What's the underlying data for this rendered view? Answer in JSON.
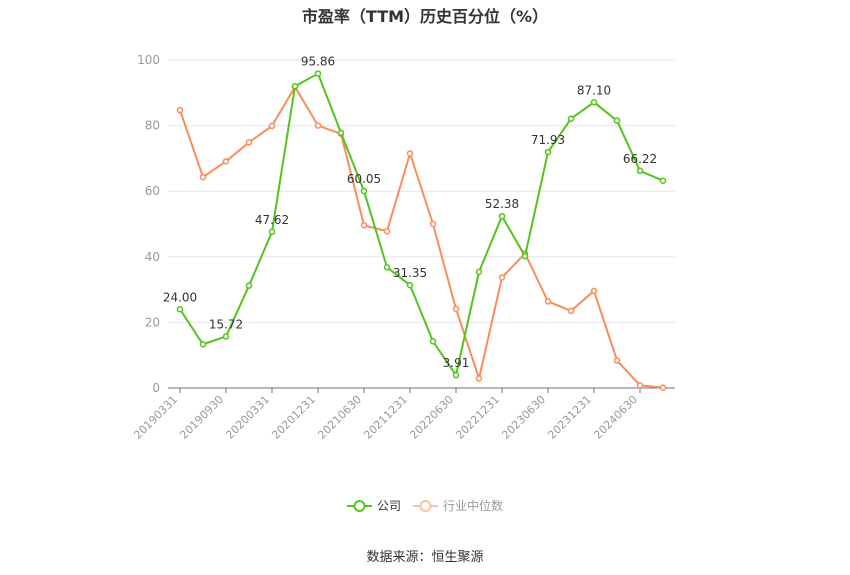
{
  "title": "市盈率（TTM）历史百分位（%）",
  "source": "数据来源：恒生聚源",
  "legend": [
    {
      "name": "公司",
      "color": "#52c41a"
    },
    {
      "name": "行业中位数",
      "color": "#fa8c5a"
    }
  ],
  "chart_data": {
    "type": "line",
    "title": "市盈率（TTM）历史百分位（%）",
    "xlabel": "",
    "ylabel": "",
    "ylim": [
      0,
      100
    ],
    "yticks": [
      0,
      20,
      40,
      60,
      80,
      100
    ],
    "grid": true,
    "legend_position": "bottom",
    "x_tick_labels": [
      "20190331",
      "20190930",
      "20200331",
      "20201231",
      "20210630",
      "20211231",
      "20220630",
      "20221231",
      "20230630",
      "20231231",
      "20240630"
    ],
    "x": [
      "20190331",
      "20190630",
      "20190930",
      "20191231",
      "20200331",
      "20200630",
      "20201231",
      "20210331",
      "20210630",
      "20210930",
      "20211231",
      "20220331",
      "20220630",
      "20220930",
      "20221231",
      "20230331",
      "20230630",
      "20230930",
      "20231231",
      "20240331",
      "20240630",
      "20240930"
    ],
    "series": [
      {
        "name": "公司",
        "color": "#52c41a",
        "values": [
          24.0,
          13.3,
          15.72,
          31.2,
          47.62,
          92.0,
          95.86,
          77.8,
          60.05,
          36.8,
          31.35,
          14.2,
          3.91,
          35.4,
          52.38,
          40.2,
          71.93,
          82.1,
          87.1,
          81.5,
          66.22,
          63.2
        ],
        "labeled_points": {
          "0": "24.00",
          "2": "15.72",
          "4": "47.62",
          "6": "95.86",
          "8": "60.05",
          "10": "31.35",
          "12": "3.91",
          "14": "52.38",
          "16": "71.93",
          "18": "87.10",
          "20": "66.22"
        }
      },
      {
        "name": "行业中位数",
        "color": "#fa8c5a",
        "values": [
          84.7,
          64.3,
          69.1,
          74.9,
          79.9,
          91.8,
          80.0,
          77.5,
          49.6,
          47.8,
          71.5,
          50.0,
          24.1,
          2.9,
          33.7,
          41.0,
          26.4,
          23.5,
          29.6,
          8.4,
          0.8,
          0.1
        ]
      }
    ]
  }
}
